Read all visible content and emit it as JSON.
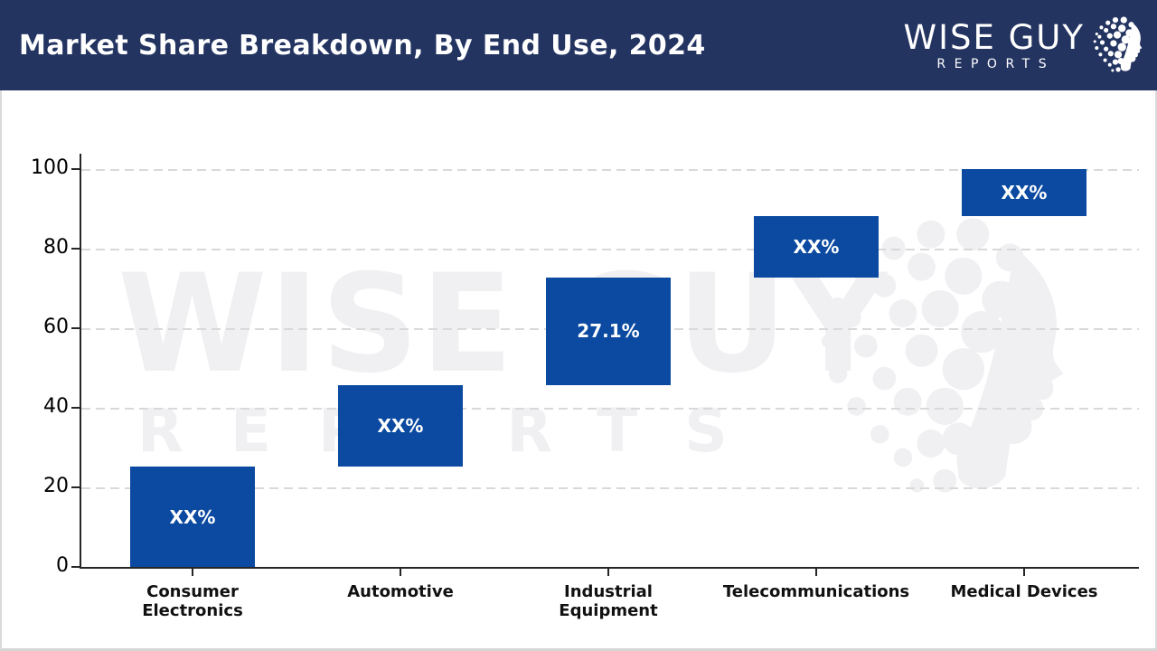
{
  "header": {
    "title": "Market Share Breakdown, By End Use, 2024",
    "bg_color": "#233461"
  },
  "logo": {
    "name_line": "WISE GUY",
    "reports_line": "REPORTS"
  },
  "watermark": {
    "big_text": "WISE GUY",
    "small_text": "REPORTS"
  },
  "colors": {
    "bar": "#0b4aa0",
    "header_bg": "#233461",
    "gridline": "#d9d9d9",
    "axis": "#262626",
    "watermark": "#f0f0f2",
    "bar_label_text": "#ffffff"
  },
  "chart_data": {
    "type": "bar",
    "variant": "waterfall",
    "title": "Market Share Breakdown, By End Use, 2024",
    "xlabel": "",
    "ylabel": "",
    "ylim": [
      0,
      100
    ],
    "yticks": [
      0,
      20,
      40,
      60,
      80,
      100
    ],
    "grid": "horizontal-dashed",
    "legend": "none",
    "bar_color": "#0b4aa0",
    "categories": [
      "Consumer Electronics",
      "Automotive",
      "Industrial Equipment",
      "Telecommunications",
      "Medical Devices"
    ],
    "x_tick_lines": [
      [
        "Consumer",
        "Electronics"
      ],
      [
        "Automotive"
      ],
      [
        "Industrial",
        "Equipment"
      ],
      [
        "Telecommunications"
      ],
      [
        "Medical Devices"
      ]
    ],
    "segments": [
      {
        "category": "Consumer Electronics",
        "start": 0,
        "end": 25.2,
        "value": 25.2,
        "label": "XX%"
      },
      {
        "category": "Automotive",
        "start": 25.2,
        "end": 45.7,
        "value": 20.5,
        "label": "XX%"
      },
      {
        "category": "Industrial Equipment",
        "start": 45.7,
        "end": 72.8,
        "value": 27.1,
        "label": "27.1%"
      },
      {
        "category": "Telecommunications",
        "start": 72.8,
        "end": 88.2,
        "value": 15.4,
        "label": "XX%"
      },
      {
        "category": "Medical Devices",
        "start": 88.2,
        "end": 100,
        "value": 11.8,
        "label": "XX%"
      }
    ]
  }
}
